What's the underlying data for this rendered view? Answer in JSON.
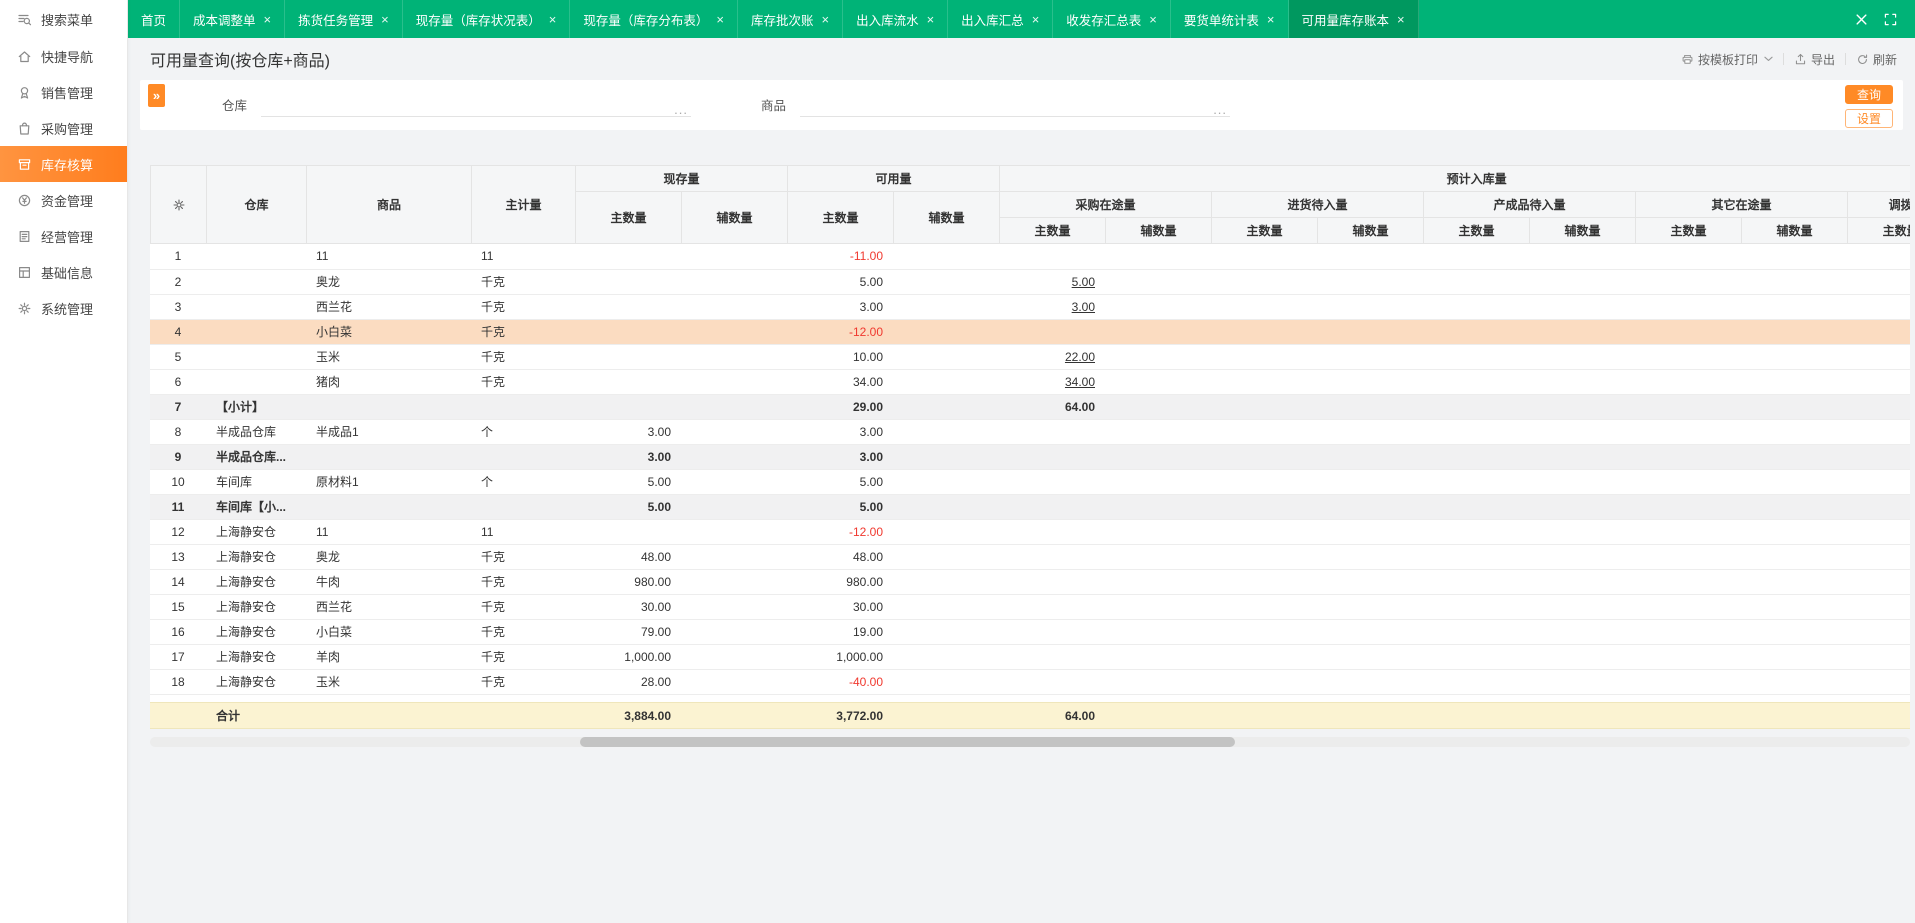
{
  "tabs": [
    {
      "label": "首页",
      "closable": false,
      "active": false
    },
    {
      "label": "成本调整单",
      "closable": true,
      "active": false
    },
    {
      "label": "拣货任务管理",
      "closable": true,
      "active": false
    },
    {
      "label": "现存量（库存状况表）",
      "closable": true,
      "active": false
    },
    {
      "label": "现存量（库存分布表）",
      "closable": true,
      "active": false
    },
    {
      "label": "库存批次账",
      "closable": true,
      "active": false
    },
    {
      "label": "出入库流水",
      "closable": true,
      "active": false
    },
    {
      "label": "出入库汇总",
      "closable": true,
      "active": false
    },
    {
      "label": "收发存汇总表",
      "closable": true,
      "active": false
    },
    {
      "label": "要货单统计表",
      "closable": true,
      "active": false
    },
    {
      "label": "可用量库存账本",
      "closable": true,
      "active": true
    }
  ],
  "sidebar": {
    "items": [
      {
        "label": "搜索菜单",
        "icon": "search-menu-icon",
        "active": false
      },
      {
        "label": "快捷导航",
        "icon": "home-icon",
        "active": false
      },
      {
        "label": "销售管理",
        "icon": "sales-icon",
        "active": false
      },
      {
        "label": "采购管理",
        "icon": "purchase-icon",
        "active": false
      },
      {
        "label": "库存核算",
        "icon": "inventory-icon",
        "active": true
      },
      {
        "label": "资金管理",
        "icon": "funds-icon",
        "active": false
      },
      {
        "label": "经营管理",
        "icon": "business-icon",
        "active": false
      },
      {
        "label": "基础信息",
        "icon": "basic-info-icon",
        "active": false
      },
      {
        "label": "系统管理",
        "icon": "system-icon",
        "active": false
      }
    ]
  },
  "header": {
    "title": "可用量查询(按仓库+商品)",
    "tools": [
      {
        "label": "按模板打印",
        "icon": "printer-icon",
        "caret": true
      },
      {
        "label": "导出",
        "icon": "export-icon",
        "caret": false
      },
      {
        "label": "刷新",
        "icon": "refresh-icon",
        "caret": false
      }
    ]
  },
  "filter": {
    "expand_icon_text": "»",
    "fields": [
      {
        "label": "仓库",
        "value": "",
        "more": "..."
      },
      {
        "label": "商品",
        "value": "",
        "more": "..."
      }
    ],
    "query_button": "查询",
    "settings_button": "设置"
  },
  "table": {
    "header": {
      "col_warehouse": "仓库",
      "col_product": "商品",
      "col_unit": "主计量",
      "grp_onhand": "现存量",
      "grp_available": "可用量",
      "grp_expected": "预计入库量",
      "sub_po": "采购在途量",
      "sub_incoming": "进货待入量",
      "sub_finished": "产成品待入量",
      "sub_other": "其它在途量",
      "sub_transfer": "调拨",
      "main_qty": "主数量",
      "aux_qty": "辅数量"
    },
    "rows": [
      {
        "type": "",
        "cells": [
          "1",
          "",
          "11",
          "11",
          "",
          "",
          {
            "t": "-11.00",
            "s": "neg"
          },
          ""
        ]
      },
      {
        "type": "",
        "cells": [
          "2",
          "",
          "奥龙",
          "千克",
          "",
          "",
          "5.00",
          "",
          {
            "t": "5.00",
            "s": "link"
          }
        ]
      },
      {
        "type": "",
        "cells": [
          "3",
          "",
          "西兰花",
          "千克",
          "",
          "",
          "3.00",
          "",
          {
            "t": "3.00",
            "s": "link"
          }
        ]
      },
      {
        "type": "selected",
        "cells": [
          "4",
          "",
          "小白菜",
          "千克",
          "",
          "",
          {
            "t": "-12.00",
            "s": "neg"
          },
          ""
        ]
      },
      {
        "type": "",
        "cells": [
          "5",
          "",
          "玉米",
          "千克",
          "",
          "",
          "10.00",
          "",
          {
            "t": "22.00",
            "s": "link"
          }
        ]
      },
      {
        "type": "",
        "cells": [
          "6",
          "",
          "猪肉",
          "千克",
          "",
          "",
          "34.00",
          "",
          {
            "t": "34.00",
            "s": "link"
          }
        ]
      },
      {
        "type": "subtotal",
        "cells": [
          "7",
          "【小计】",
          "",
          "",
          "",
          "",
          "29.00",
          "",
          "64.00"
        ]
      },
      {
        "type": "",
        "cells": [
          "8",
          "半成品仓库",
          "半成品1",
          "个",
          "3.00",
          "",
          "3.00"
        ]
      },
      {
        "type": "subtotal",
        "cells": [
          "9",
          "半成品仓库...",
          "",
          "",
          "3.00",
          "",
          "3.00"
        ]
      },
      {
        "type": "",
        "cells": [
          "10",
          "车间库",
          "原材料1",
          "个",
          "5.00",
          "",
          "5.00"
        ]
      },
      {
        "type": "subtotal",
        "cells": [
          "11",
          "车间库【小...",
          "",
          "",
          "5.00",
          "",
          "5.00"
        ]
      },
      {
        "type": "",
        "cells": [
          "12",
          "上海静安仓",
          "11",
          "11",
          "",
          "",
          {
            "t": "-12.00",
            "s": "neg"
          }
        ]
      },
      {
        "type": "",
        "cells": [
          "13",
          "上海静安仓",
          "奥龙",
          "千克",
          "48.00",
          "",
          "48.00"
        ]
      },
      {
        "type": "",
        "cells": [
          "14",
          "上海静安仓",
          "牛肉",
          "千克",
          "980.00",
          "",
          "980.00"
        ]
      },
      {
        "type": "",
        "cells": [
          "15",
          "上海静安仓",
          "西兰花",
          "千克",
          "30.00",
          "",
          "30.00"
        ]
      },
      {
        "type": "",
        "cells": [
          "16",
          "上海静安仓",
          "小白菜",
          "千克",
          "79.00",
          "",
          "19.00"
        ]
      },
      {
        "type": "",
        "cells": [
          "17",
          "上海静安仓",
          "羊肉",
          "千克",
          "1,000.00",
          "",
          "1,000.00"
        ]
      },
      {
        "type": "",
        "cells": [
          "18",
          "上海静安仓",
          "玉米",
          "千克",
          "28.00",
          "",
          {
            "t": "-40.00",
            "s": "neg"
          }
        ]
      }
    ],
    "total": {
      "type": "total",
      "cells": [
        "",
        "合计",
        "",
        "",
        "3,884.00",
        "",
        "3,772.00",
        "",
        "64.00"
      ]
    }
  },
  "colors": {
    "brand_green": "#00b377",
    "active_tab_green": "#00985f",
    "accent_orange": "#ff8a26",
    "negative_red": "#f0392f",
    "selected_row": "#fbdcc1",
    "subtotal_bg": "#f1f1f2",
    "total_row_bg": "#fbf3d2"
  }
}
